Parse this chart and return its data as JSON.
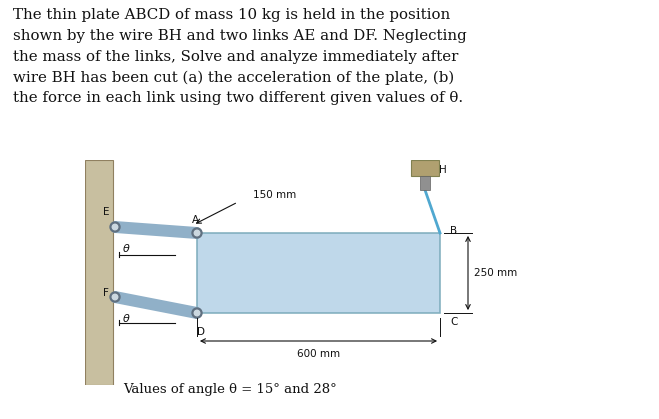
{
  "title_text": "The thin plate ABCD of mass 10 kg is held in the position\nshown by the wire BH and two links AE and DF. Neglecting\nthe mass of the links, Solve and analyze immediately after\nwire BH has been cut (a) the acceleration of the plate, (b)\nthe force in each link using two different given values of θ.",
  "bg_color": "#f0ead0",
  "wall_color": "#c8bfa0",
  "plate_fill": "#b8d4e8",
  "plate_edge": "#7aaabb",
  "link_color": "#90b0c8",
  "wire_color": "#50a8d0",
  "ceiling_color": "#b0a070",
  "ceiling_wire_color": "#909090",
  "figure_bg": "#ffffff",
  "text_color": "#111111",
  "values_text": "Values of angle θ = 15° and 28°",
  "dim_150": "150 mm",
  "dim_600": "600 mm",
  "dim_250": "250 mm"
}
